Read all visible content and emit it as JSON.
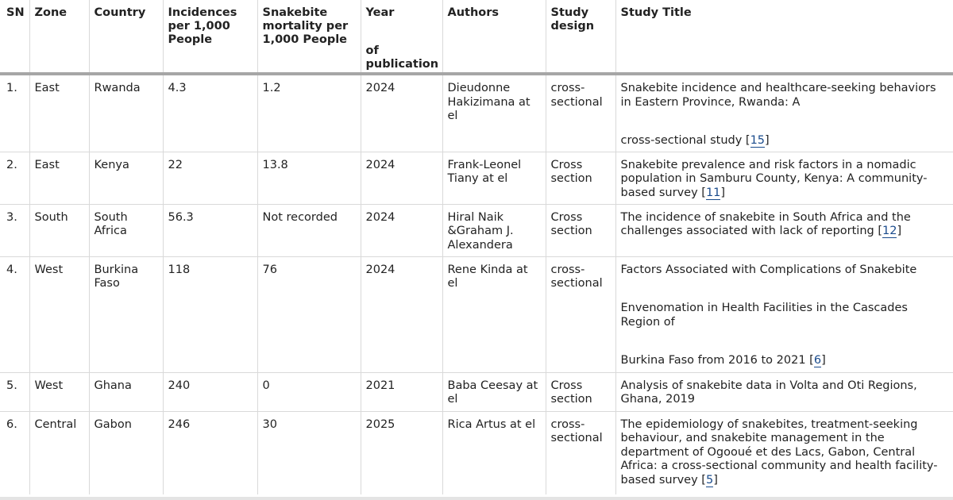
{
  "headers": {
    "sn": "SN",
    "zone": "Zone",
    "country": "Country",
    "incidence": "Incidences per 1,000 People",
    "mortality": "Snakebite mortality per 1,000 People",
    "year_top": "Year",
    "year_bottom": "of publication",
    "authors": "Authors",
    "design": "Study design",
    "title": "Study Title"
  },
  "rows": [
    {
      "sn": "1.",
      "zone": "East",
      "country": "Rwanda",
      "incidence": "4.3",
      "mortality": "1.2",
      "year": "2024",
      "authors": "Dieudonne Hakizimana at el",
      "design": "cross-sectional",
      "title_a": "Snakebite incidence and healthcare-seeking behaviors in Eastern Province, Rwanda: A",
      "title_b": "cross-sectional study",
      "ref": "15"
    },
    {
      "sn": "2.",
      "zone": "East",
      "country": "Kenya",
      "incidence": "22",
      "mortality": "13.8",
      "year": "2024",
      "authors": "Frank-Leonel Tiany at el",
      "design": "Cross section",
      "title_a": "Snakebite prevalence and risk factors in a nomadic population in Samburu County, Kenya: A community-based survey",
      "ref": "11"
    },
    {
      "sn": "3.",
      "zone": "South",
      "country": "South Africa",
      "incidence": "56.3",
      "mortality": "Not recorded",
      "year": "2024",
      "authors": "Hiral Naik &Graham J. Alexandera",
      "design": "Cross section",
      "title_a": "The incidence of snakebite in South Africa and the challenges associated with lack of reporting",
      "ref": "12"
    },
    {
      "sn": "4.",
      "zone": "West",
      "country": "Burkina Faso",
      "incidence": "118",
      "mortality": "76",
      "year": "2024",
      "authors": "Rene Kinda at el",
      "design": "cross-sectional",
      "title_a": "Factors Associated with Complications of Snakebite",
      "title_b": "Envenomation in Health Facilities in the Cascades Region of",
      "title_c": "Burkina Faso from 2016 to 2021",
      "ref": "6"
    },
    {
      "sn": "5.",
      "zone": "West",
      "country": "Ghana",
      "incidence": "240",
      "mortality": "0",
      "year": "2021",
      "authors": "Baba Ceesay at el",
      "design": "Cross section",
      "title_a": "Analysis of snakebite data in Volta and Oti Regions, Ghana, 2019"
    },
    {
      "sn": "6.",
      "zone": "Central",
      "country": "Gabon",
      "incidence": "246",
      "mortality": "30",
      "year": "2025",
      "authors": "Rica Artus at el",
      "design": "cross-sectional",
      "title_a": "The epidemiology of snakebites, treatment-seeking behaviour, and snakebite management in the department of Ogooué et des Lacs, Gabon, Central Africa: a cross-sectional community and health facility-based survey",
      "ref": "5"
    }
  ]
}
